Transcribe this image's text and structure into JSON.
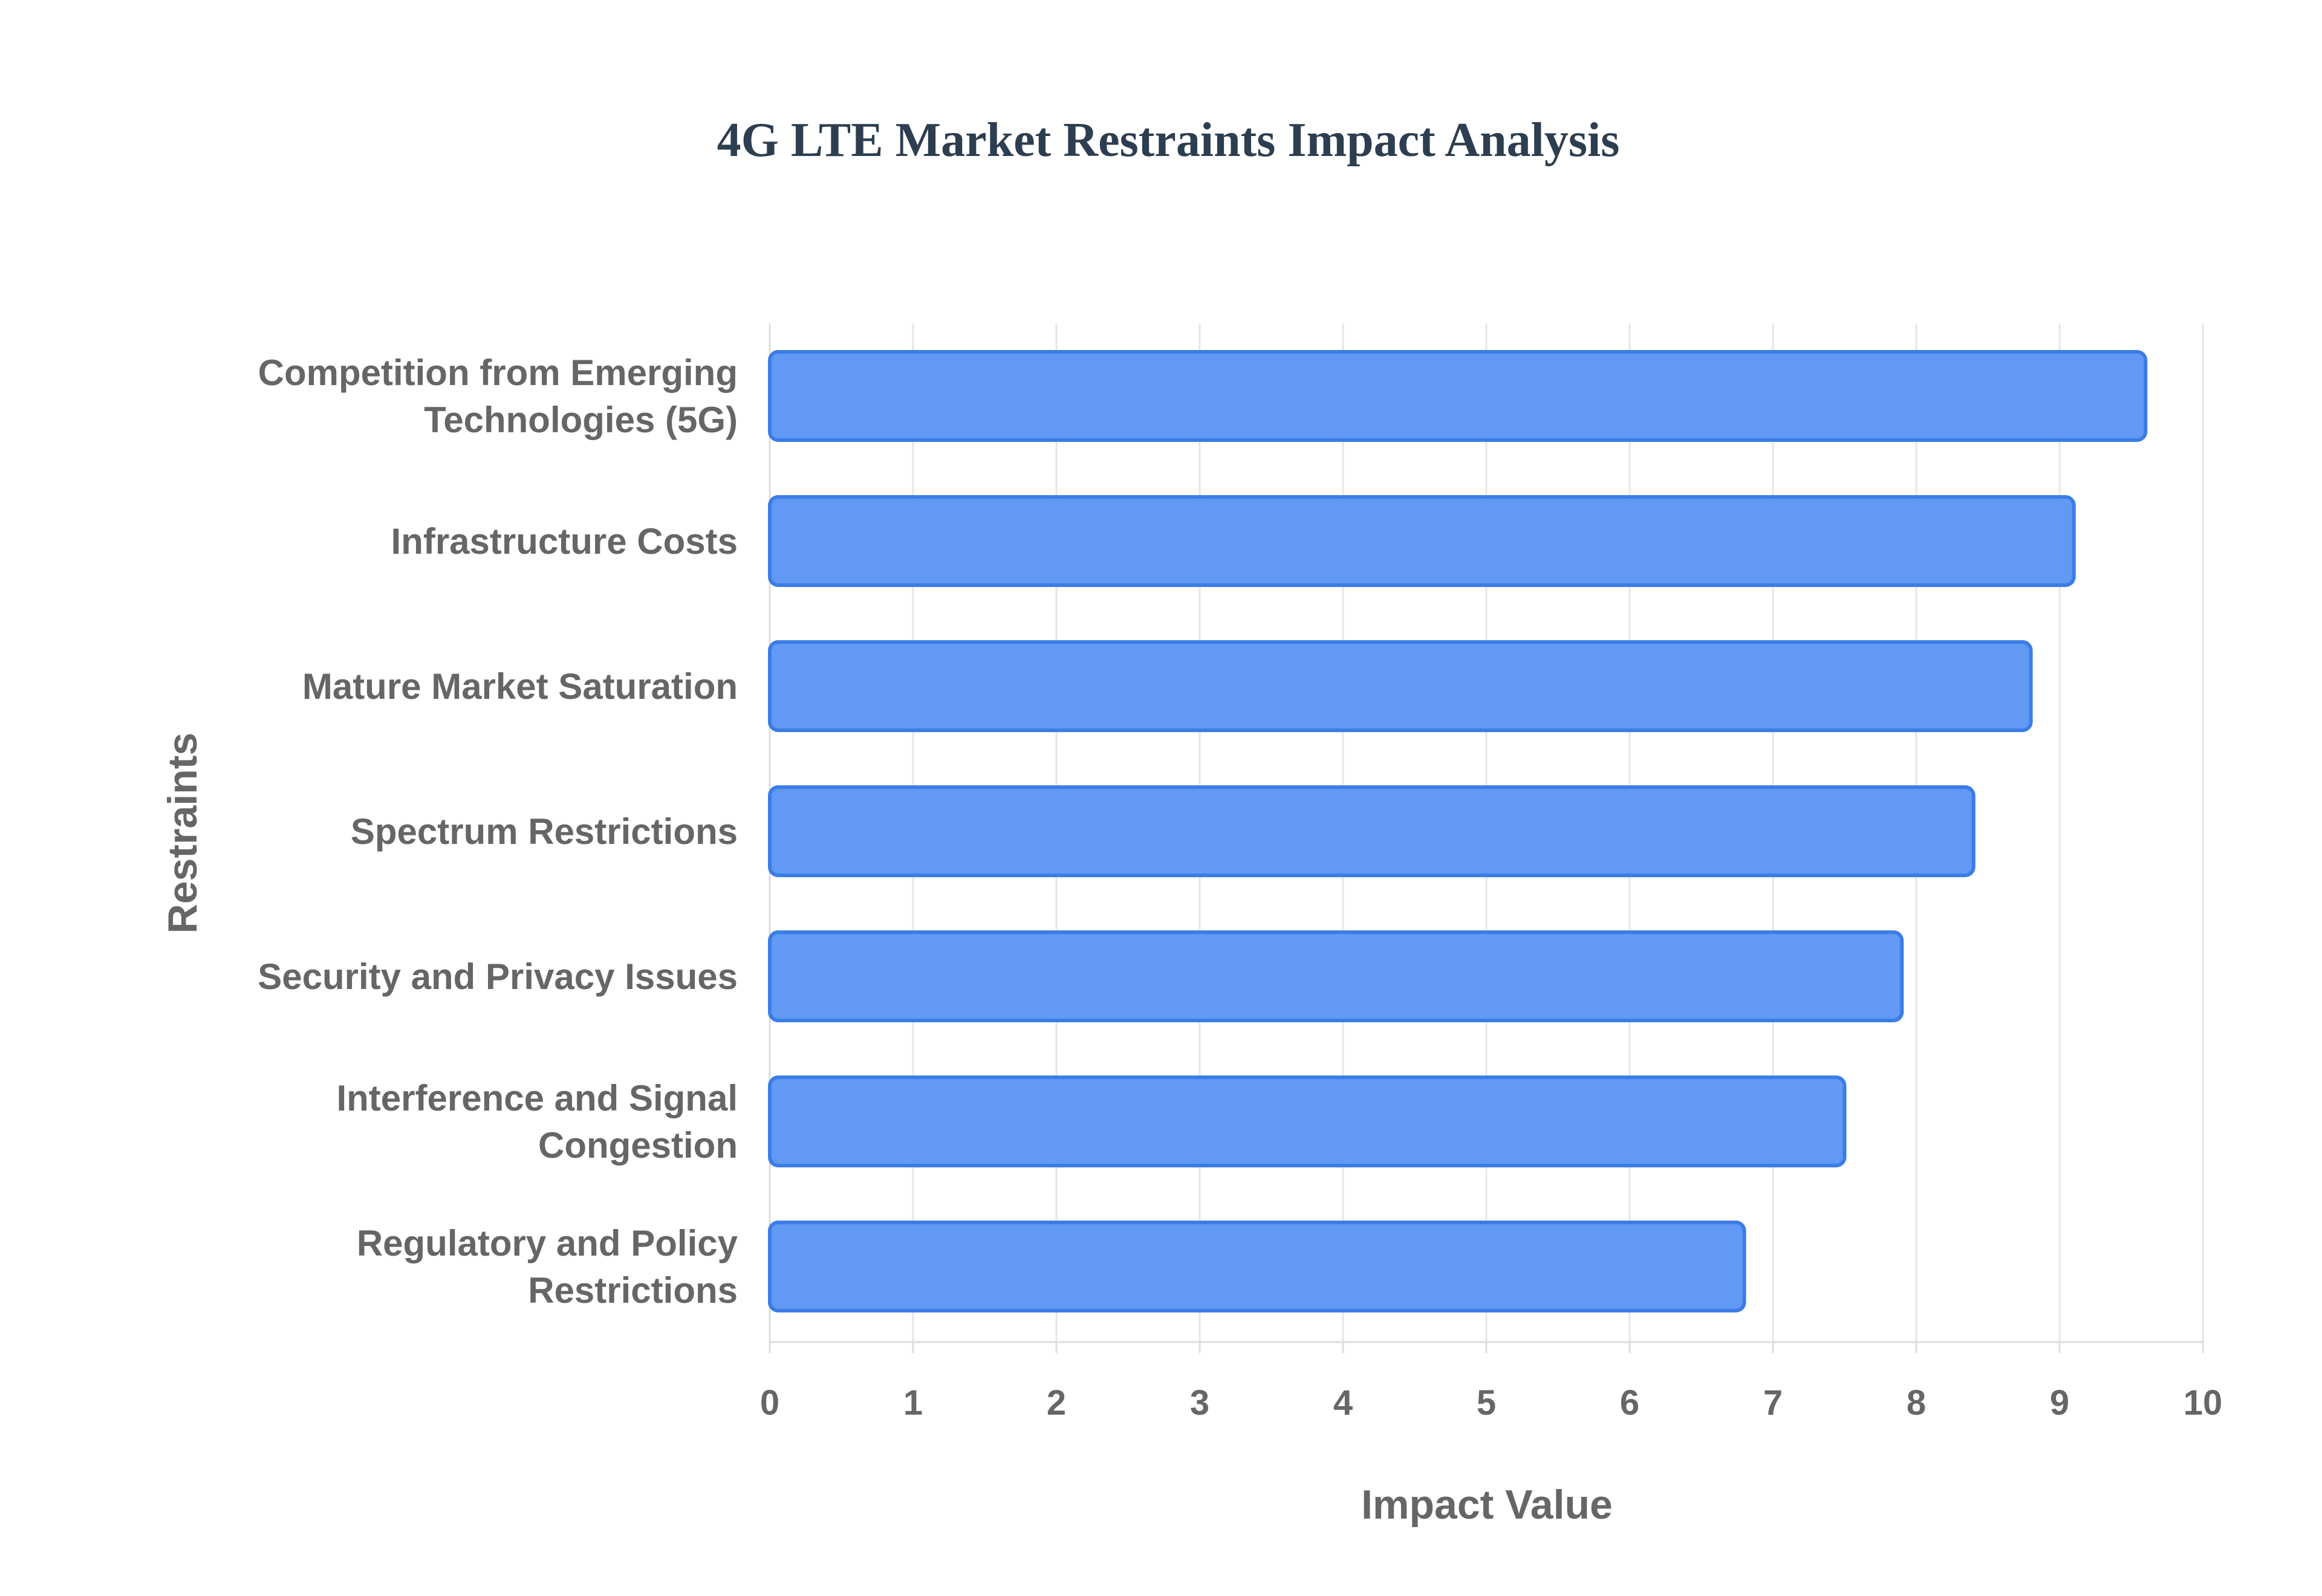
{
  "chart_data": {
    "type": "bar",
    "orientation": "horizontal",
    "title": "4G LTE Market Restraints Impact Analysis",
    "xlabel": "Impact Value",
    "ylabel": "Restraints",
    "xlim": [
      0,
      10
    ],
    "xticks": [
      0,
      1,
      2,
      3,
      4,
      5,
      6,
      7,
      8,
      9,
      10
    ],
    "grid": true,
    "legend": "none",
    "categories": [
      [
        "Competition from Emerging",
        "Technologies (5G)"
      ],
      [
        "Infrastructure Costs"
      ],
      [
        "Mature Market Saturation"
      ],
      [
        "Spectrum Restrictions"
      ],
      [
        "Security and Privacy Issues"
      ],
      [
        "Interference and Signal",
        "Congestion"
      ],
      [
        "Regulatory and Policy",
        "Restrictions"
      ]
    ],
    "values": [
      9.6,
      9.1,
      8.8,
      8.4,
      7.9,
      7.5,
      6.8
    ],
    "bar_color": "#6199f4",
    "bar_border_color": "#3b7de6"
  }
}
